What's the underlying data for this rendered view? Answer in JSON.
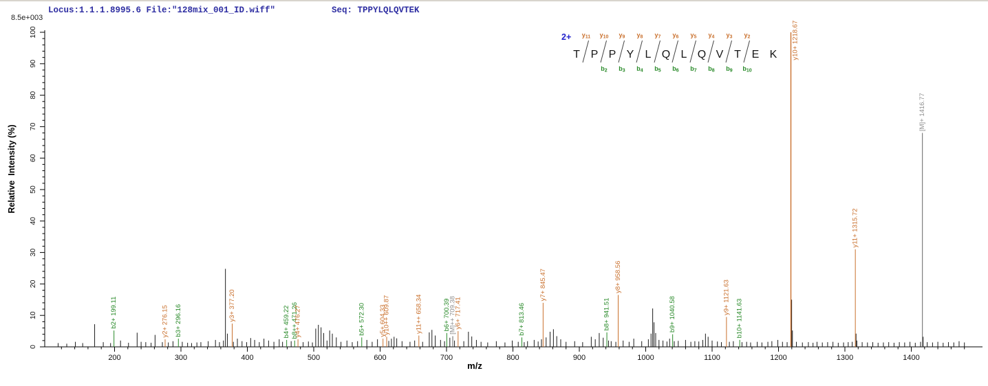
{
  "window": {
    "bg": "#ffffff",
    "top_edge_color": "#d8d4cd"
  },
  "header": {
    "locus_file": "Locus:1.1.1.8995.6 File:\"128mix_001_ID.wiff\"",
    "seq": "Seq: TPPYLQLQVTEK",
    "max_intensity": "8.5e+003",
    "text_color": "#2e2ea2"
  },
  "peptide": {
    "charge_label": "2+",
    "charge_color": "#2222cc",
    "residues": [
      "T",
      "P",
      "P",
      "Y",
      "L",
      "Q",
      "L",
      "Q",
      "V",
      "T",
      "E",
      "K"
    ],
    "y_gap_labels": [
      "y11",
      "y10",
      "y9",
      "y8",
      "y7",
      "y6",
      "y5",
      "y4",
      "y3",
      "y2"
    ],
    "b_gap_labels": [
      "b2",
      "b3",
      "b4",
      "b5",
      "b6",
      "b7",
      "b8",
      "b9",
      "b10"
    ]
  },
  "colors": {
    "b": "#278927",
    "y": "#c9702d",
    "M_line": "#636363",
    "M_text": "#8f8f8f",
    "noise": "#1a1a1a",
    "axis": "#000000",
    "tick_text": "#111111"
  },
  "chart_data": {
    "type": "bar",
    "xlabel": "m/z",
    "ylabel": "Relative  Intensity (%)",
    "xlim": [
      100,
      1500
    ],
    "ylim": [
      0,
      100
    ],
    "x_label_min": 200,
    "x_label_max": 1400,
    "x_major_tick_step": 100,
    "x_minor_tick_step": 20,
    "y_major_tick_step": 10,
    "y_minor_tick_step": 2,
    "labeled_peaks": [
      {
        "label": "b2+ 199.11",
        "series": "b",
        "mz": 199.11,
        "pct": 5.2
      },
      {
        "label": "y2+ 276.15",
        "series": "y",
        "mz": 276.15,
        "pct": 2.4
      },
      {
        "label": "b3+ 296.16",
        "series": "b",
        "mz": 296.16,
        "pct": 2.6
      },
      {
        "label": "y3+ 377.20",
        "series": "y",
        "mz": 377.2,
        "pct": 7.4
      },
      {
        "label": "b4+ 459.22",
        "series": "b",
        "mz": 459.22,
        "pct": 2.2
      },
      {
        "label": "b8++ 471.26",
        "series": "b",
        "mz": 471.26,
        "pct": 2.0
      },
      {
        "label": "y4+ 476.27",
        "series": "y",
        "mz": 476.27,
        "pct": 2.4
      },
      {
        "label": "b5+ 572.30",
        "series": "b",
        "mz": 572.3,
        "pct": 3.0
      },
      {
        "label": "y5+ 604.33",
        "series": "y",
        "mz": 604.33,
        "pct": 2.6
      },
      {
        "label": "y10++ 609.87",
        "series": "y",
        "mz": 609.87,
        "pct": 3.2
      },
      {
        "label": "y11++ 658.34",
        "series": "y",
        "mz": 658.34,
        "pct": 3.6
      },
      {
        "label": "b6+ 700.39",
        "series": "b",
        "mz": 700.39,
        "pct": 4.4
      },
      {
        "label": "[M]++ 709.38",
        "series": "M",
        "mz": 709.38,
        "pct": 3.4
      },
      {
        "label": "y6+ 717.41",
        "series": "y",
        "mz": 717.41,
        "pct": 5.0
      },
      {
        "label": "b7+ 813.46",
        "series": "b",
        "mz": 813.46,
        "pct": 3.0
      },
      {
        "label": "y7+ 845.47",
        "series": "y",
        "mz": 845.47,
        "pct": 14.0
      },
      {
        "label": "b8+ 941.51",
        "series": "b",
        "mz": 941.51,
        "pct": 4.6
      },
      {
        "label": "y8+ 958.56",
        "series": "y",
        "mz": 958.56,
        "pct": 16.5
      },
      {
        "label": "b9+ 1040.58",
        "series": "b",
        "mz": 1040.58,
        "pct": 4.0
      },
      {
        "label": "y9+ 1121.63",
        "series": "y",
        "mz": 1121.63,
        "pct": 9.5
      },
      {
        "label": "b10+ 1141.63",
        "series": "b",
        "mz": 1141.63,
        "pct": 2.2
      },
      {
        "label": "y10+ 1218.67",
        "series": "y",
        "mz": 1218.67,
        "pct": 100
      },
      {
        "label": "y11+ 1315.72",
        "series": "y",
        "mz": 1315.72,
        "pct": 31
      },
      {
        "label": "[M]+ 1416.77",
        "series": "M",
        "mz": 1416.77,
        "pct": 68
      }
    ],
    "noise_peaks": [
      [
        115,
        1.2
      ],
      [
        128,
        1.0
      ],
      [
        141,
        1.6
      ],
      [
        152,
        1.2
      ],
      [
        170,
        7.2
      ],
      [
        183,
        1.5
      ],
      [
        194,
        1.2
      ],
      [
        209,
        2.0
      ],
      [
        221,
        1.3
      ],
      [
        234,
        4.5
      ],
      [
        240,
        1.6
      ],
      [
        247,
        1.5
      ],
      [
        255,
        1.3
      ],
      [
        261,
        3.8
      ],
      [
        272,
        1.5
      ],
      [
        281,
        1.4
      ],
      [
        288,
        1.8
      ],
      [
        302,
        1.6
      ],
      [
        310,
        1.3
      ],
      [
        316,
        1.2
      ],
      [
        324,
        1.4
      ],
      [
        330,
        1.5
      ],
      [
        341,
        1.8
      ],
      [
        352,
        2.2
      ],
      [
        358,
        1.5
      ],
      [
        364,
        2.0
      ],
      [
        367,
        24.8
      ],
      [
        370,
        4.2
      ],
      [
        379,
        1.6
      ],
      [
        385,
        2.6
      ],
      [
        392,
        1.8
      ],
      [
        399,
        1.5
      ],
      [
        405,
        2.8
      ],
      [
        411,
        2.2
      ],
      [
        418,
        1.5
      ],
      [
        425,
        2.6
      ],
      [
        432,
        2.0
      ],
      [
        440,
        1.6
      ],
      [
        448,
        2.4
      ],
      [
        453,
        1.6
      ],
      [
        466,
        1.8
      ],
      [
        484,
        1.5
      ],
      [
        492,
        1.7
      ],
      [
        498,
        1.4
      ],
      [
        503,
        5.8
      ],
      [
        507,
        7.0
      ],
      [
        511,
        6.2
      ],
      [
        515,
        4.4
      ],
      [
        520,
        2.0
      ],
      [
        524,
        5.2
      ],
      [
        528,
        4.2
      ],
      [
        534,
        3.0
      ],
      [
        541,
        1.6
      ],
      [
        550,
        2.0
      ],
      [
        558,
        1.5
      ],
      [
        566,
        1.8
      ],
      [
        580,
        2.2
      ],
      [
        588,
        1.6
      ],
      [
        596,
        2.4
      ],
      [
        613,
        1.9
      ],
      [
        617,
        2.6
      ],
      [
        621,
        3.2
      ],
      [
        625,
        2.7
      ],
      [
        633,
        1.8
      ],
      [
        645,
        1.6
      ],
      [
        652,
        2.0
      ],
      [
        664,
        1.6
      ],
      [
        674,
        4.6
      ],
      [
        678,
        5.4
      ],
      [
        683,
        3.6
      ],
      [
        691,
        2.2
      ],
      [
        697,
        1.8
      ],
      [
        705,
        2.9
      ],
      [
        712,
        2.0
      ],
      [
        726,
        1.8
      ],
      [
        733,
        4.8
      ],
      [
        738,
        3.3
      ],
      [
        745,
        2.2
      ],
      [
        752,
        1.6
      ],
      [
        762,
        1.4
      ],
      [
        775,
        1.8
      ],
      [
        788,
        1.4
      ],
      [
        799,
        2.0
      ],
      [
        808,
        1.6
      ],
      [
        817,
        1.5
      ],
      [
        822,
        1.8
      ],
      [
        832,
        2.2
      ],
      [
        838,
        1.7
      ],
      [
        843,
        2.4
      ],
      [
        850,
        3.0
      ],
      [
        856,
        4.8
      ],
      [
        861,
        5.6
      ],
      [
        866,
        3.4
      ],
      [
        872,
        2.4
      ],
      [
        880,
        1.6
      ],
      [
        893,
        1.8
      ],
      [
        905,
        1.5
      ],
      [
        918,
        3.2
      ],
      [
        924,
        2.4
      ],
      [
        930,
        4.4
      ],
      [
        936,
        2.9
      ],
      [
        944,
        2.0
      ],
      [
        948,
        1.8
      ],
      [
        955,
        1.6
      ],
      [
        966,
        2.0
      ],
      [
        975,
        1.6
      ],
      [
        982,
        2.6
      ],
      [
        994,
        1.8
      ],
      [
        1004,
        2.4
      ],
      [
        1008,
        4.2
      ],
      [
        1010.5,
        12.2
      ],
      [
        1012.5,
        7.8
      ],
      [
        1015,
        4.4
      ],
      [
        1020,
        2.2
      ],
      [
        1026,
        2.0
      ],
      [
        1032,
        1.7
      ],
      [
        1036,
        2.6
      ],
      [
        1043,
        1.8
      ],
      [
        1049,
        1.9
      ],
      [
        1060,
        2.2
      ],
      [
        1068,
        1.6
      ],
      [
        1074,
        1.8
      ],
      [
        1080,
        1.7
      ],
      [
        1086,
        2.2
      ],
      [
        1090,
        4.2
      ],
      [
        1094,
        3.2
      ],
      [
        1100,
        2.0
      ],
      [
        1108,
        1.7
      ],
      [
        1114,
        1.5
      ],
      [
        1126,
        1.6
      ],
      [
        1132,
        1.8
      ],
      [
        1145,
        1.5
      ],
      [
        1152,
        1.6
      ],
      [
        1158,
        1.4
      ],
      [
        1168,
        1.6
      ],
      [
        1175,
        1.4
      ],
      [
        1184,
        1.6
      ],
      [
        1190,
        1.8
      ],
      [
        1199,
        2.2
      ],
      [
        1206,
        1.6
      ],
      [
        1213,
        1.5
      ],
      [
        1219.8,
        15.0
      ],
      [
        1221,
        5.2
      ],
      [
        1227,
        1.6
      ],
      [
        1236,
        1.4
      ],
      [
        1245,
        1.5
      ],
      [
        1252,
        1.3
      ],
      [
        1258,
        1.6
      ],
      [
        1266,
        1.4
      ],
      [
        1274,
        1.5
      ],
      [
        1282,
        1.6
      ],
      [
        1290,
        1.3
      ],
      [
        1298,
        1.4
      ],
      [
        1305,
        1.5
      ],
      [
        1311,
        1.6
      ],
      [
        1316.8,
        4.2
      ],
      [
        1318,
        2.0
      ],
      [
        1326,
        1.5
      ],
      [
        1334,
        1.4
      ],
      [
        1342,
        1.5
      ],
      [
        1350,
        1.3
      ],
      [
        1358,
        1.4
      ],
      [
        1366,
        1.5
      ],
      [
        1374,
        1.3
      ],
      [
        1382,
        1.5
      ],
      [
        1390,
        1.4
      ],
      [
        1398,
        1.6
      ],
      [
        1406,
        1.3
      ],
      [
        1414,
        1.6
      ],
      [
        1417.9,
        3.2
      ],
      [
        1424,
        1.5
      ],
      [
        1432,
        1.4
      ],
      [
        1440,
        1.6
      ],
      [
        1448,
        1.3
      ],
      [
        1456,
        1.5
      ],
      [
        1464,
        1.4
      ],
      [
        1472,
        1.8
      ],
      [
        1480,
        1.4
      ]
    ]
  }
}
